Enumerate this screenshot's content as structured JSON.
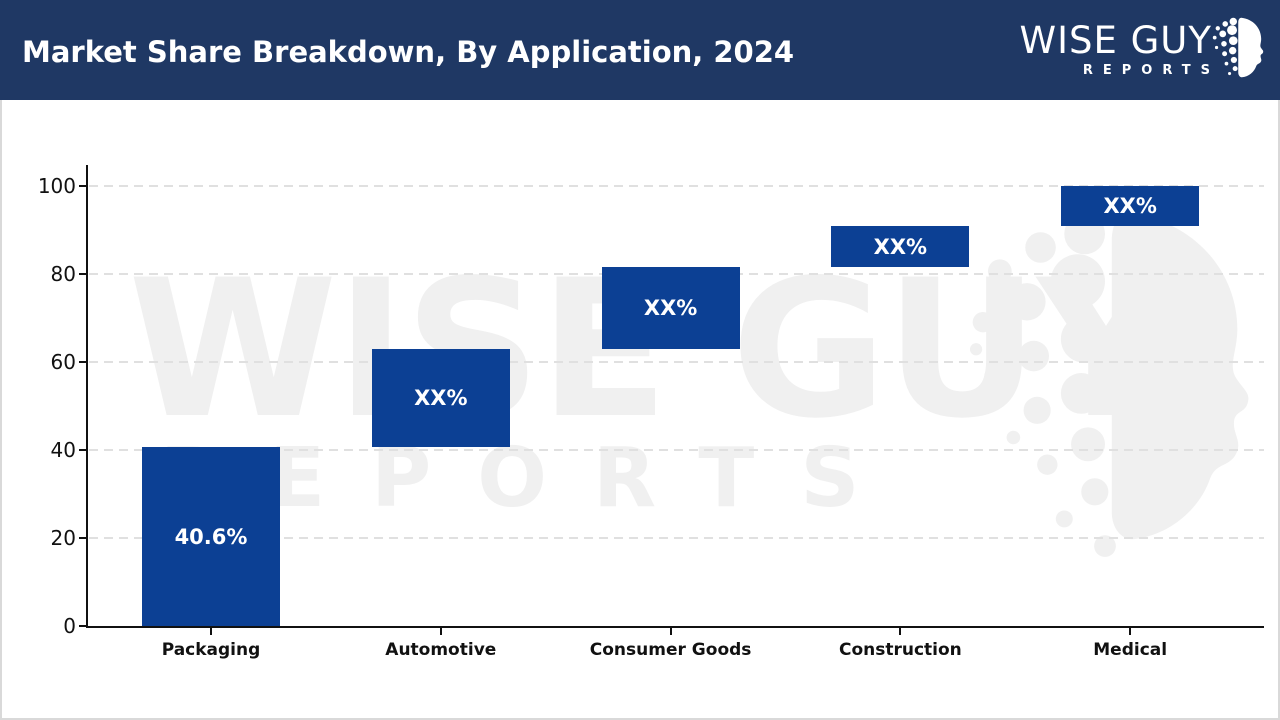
{
  "header": {
    "title": "Market Share Breakdown, By Application, 2024",
    "logo": {
      "wordmark": "WISE GUY",
      "subtext": "REPORTS"
    }
  },
  "watermark": {
    "wordmark": "WISE GUY",
    "subtext": "REPORTS"
  },
  "colors": {
    "header_bg": "#1f3864",
    "bar_fill": "#0c4094",
    "bar_label_text": "#ffffff",
    "grid_line": "#e0e0e0",
    "axis_line": "#111111",
    "watermark": "#f0f0f0",
    "canvas_border": "#d9d9d9"
  },
  "chart_data": {
    "type": "bar",
    "subtype": "floating-waterfall",
    "title": "Market Share Breakdown, By Application, 2024",
    "categories": [
      "Packaging",
      "Automotive",
      "Consumer Goods",
      "Construction",
      "Medical"
    ],
    "bars": [
      {
        "category": "Packaging",
        "start": 0,
        "end": 40.6,
        "value": 40.6,
        "label": "40.6%"
      },
      {
        "category": "Automotive",
        "start": 40.6,
        "end": 63.0,
        "value": 22.4,
        "label": "XX%"
      },
      {
        "category": "Consumer Goods",
        "start": 63.0,
        "end": 81.6,
        "value": 18.6,
        "label": "XX%"
      },
      {
        "category": "Construction",
        "start": 81.6,
        "end": 90.8,
        "value": 9.2,
        "label": "XX%"
      },
      {
        "category": "Medical",
        "start": 90.8,
        "end": 100.0,
        "value": 9.2,
        "label": "XX%"
      }
    ],
    "yticks": [
      0,
      20,
      40,
      60,
      80,
      100
    ],
    "ylim": [
      0,
      105
    ],
    "xlabel": "",
    "ylabel": "",
    "grid": "horizontal-dashed",
    "legend": "none"
  }
}
